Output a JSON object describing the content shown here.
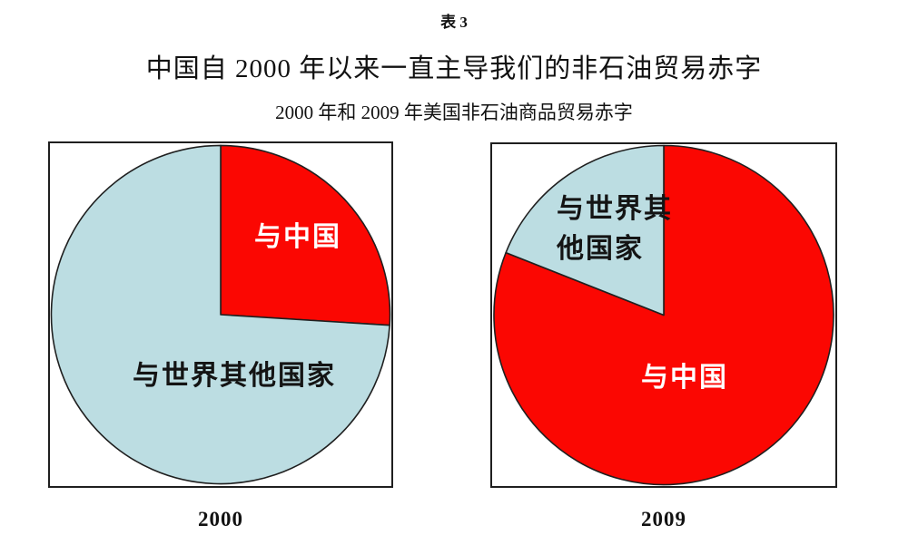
{
  "header": {
    "table_label": "表 3",
    "title": "中国自 2000 年以来一直主导我们的非石油贸易赤字",
    "subtitle": "2000 年和 2009 年美国非石油商品贸易赤字"
  },
  "colors": {
    "page_bg": "#ffffff",
    "text": "#111111",
    "outline": "#1f1f1f",
    "china_slice": "#fb0702",
    "others_slice": "#bcdde2",
    "label_on_red": "#ffffff",
    "label_on_blue": "#141414"
  },
  "chart_data": [
    {
      "type": "pie",
      "title": "2000",
      "start_angle_deg": 0,
      "direction": "clockwise",
      "legend": "labels-inside-slices",
      "slices": [
        {
          "label": "与中国",
          "value_pct": 26,
          "color": "#fb0702"
        },
        {
          "label": "与世界其他国家",
          "value_pct": 74,
          "color": "#bcdde2"
        }
      ]
    },
    {
      "type": "pie",
      "title": "2009",
      "start_angle_deg": 0,
      "direction": "clockwise",
      "legend": "labels-inside-slices",
      "slices": [
        {
          "label": "与中国",
          "value_pct": 81,
          "color": "#fb0702"
        },
        {
          "label": "与世界其他国家",
          "value_pct": 19,
          "color": "#bcdde2"
        }
      ]
    }
  ],
  "labels": {
    "pie2009_others_line1": "与世界其",
    "pie2009_others_line2": "他国家"
  }
}
